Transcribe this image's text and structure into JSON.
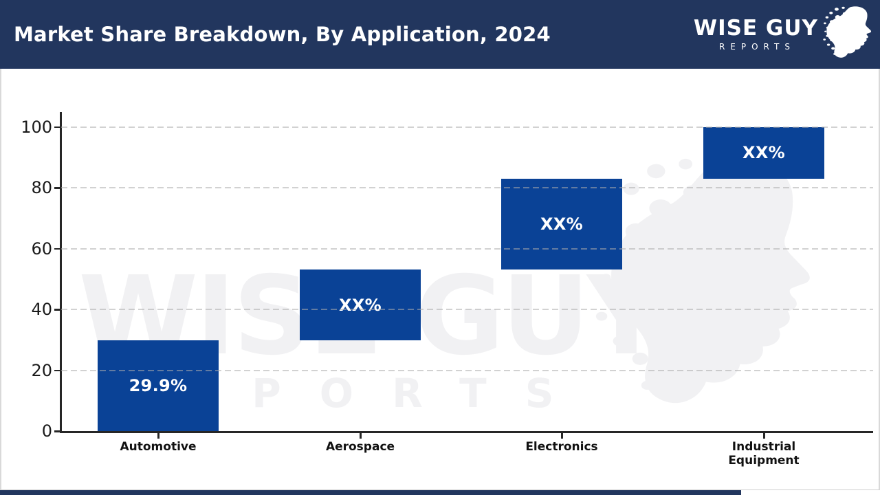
{
  "header": {
    "title": "Market Share Breakdown, By Application, 2024",
    "logo": {
      "wordmark": "WISE GUY",
      "subtext": "REPORTS"
    }
  },
  "watermark": {
    "wordmark": "WISE GUY",
    "subtext": "REPORTS"
  },
  "colors": {
    "header_bg": "#22365e",
    "footer_bg": "#22365e",
    "bar": "#0a4296",
    "bar_label": "#ffffff",
    "axis": "#262626",
    "gridline": "#d9d9d9",
    "watermark": "#f1f1f3"
  },
  "chart_data": {
    "type": "bar",
    "variant": "floating-waterfall",
    "title": "Market Share Breakdown, By Application, 2024",
    "categories": [
      "Automotive",
      "Aerospace",
      "Electronics",
      "Industrial Equipment"
    ],
    "segments": [
      {
        "start": 0,
        "end": 29.9
      },
      {
        "start": 29.9,
        "end": 53
      },
      {
        "start": 53,
        "end": 83
      },
      {
        "start": 83,
        "end": 100
      }
    ],
    "segment_sizes_est": [
      29.9,
      23.1,
      30.0,
      17.0
    ],
    "bar_labels": [
      "29.9%",
      "XX%",
      "XX%",
      "XX%"
    ],
    "xlabel": "",
    "ylabel": "",
    "ylim": [
      0,
      100
    ],
    "yticks": [
      0,
      20,
      40,
      60,
      80,
      100
    ],
    "grid": "horizontal-dashed",
    "legend": "none"
  }
}
